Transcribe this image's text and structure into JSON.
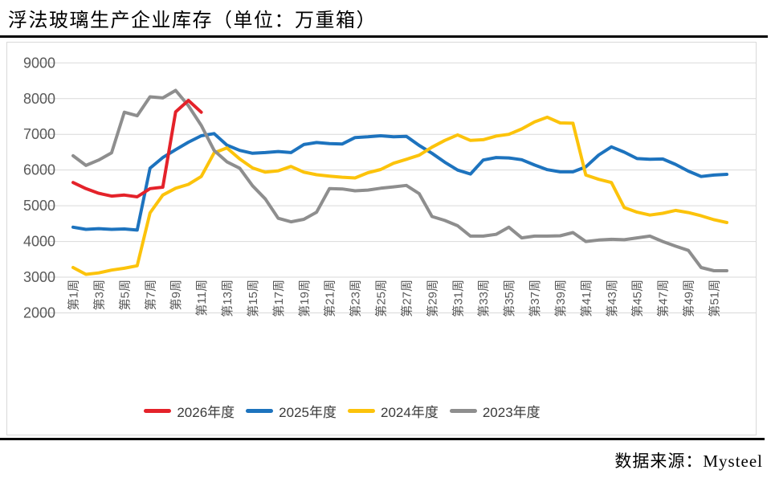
{
  "chart_data": {
    "type": "line",
    "title": "浮法玻璃生产企业库存（单位：万重箱）",
    "source_note": "数据来源：Mysteel",
    "legend_position": "bottom",
    "grid": true,
    "x_axis": {
      "weeks_total": 52,
      "tick_labels": [
        "第1周",
        "第3周",
        "第5周",
        "第7周",
        "第9周",
        "第11周",
        "第13周",
        "第15周",
        "第17周",
        "第19周",
        "第21周",
        "第23周",
        "第25周",
        "第27周",
        "第29周",
        "第31周",
        "第33周",
        "第35周",
        "第37周",
        "第39周",
        "第41周",
        "第43周",
        "第45周",
        "第47周",
        "第49周",
        "第51周"
      ]
    },
    "y_axis": {
      "min": 2000,
      "max": 9000,
      "ticks": [
        9000,
        8000,
        7000,
        6000,
        5000,
        4000,
        3000,
        2000
      ]
    },
    "colors": {
      "grid": "#d9d9d9",
      "axis_text": "#595959",
      "legend_text": "#3a3a3a",
      "rule": "#000000"
    },
    "series": [
      {
        "name": "2026年度",
        "color": "#e4222a",
        "start_week": 1,
        "values": [
          5650,
          5480,
          5350,
          5270,
          5300,
          5250,
          5480,
          5520,
          7630,
          7950,
          7620
        ]
      },
      {
        "name": "2025年度",
        "color": "#1d73be",
        "start_week": 1,
        "values": [
          4400,
          4340,
          4360,
          4340,
          4350,
          4320,
          6050,
          6350,
          6570,
          6780,
          6960,
          7020,
          6700,
          6550,
          6470,
          6490,
          6520,
          6490,
          6715,
          6770,
          6740,
          6730,
          6910,
          6930,
          6960,
          6930,
          6945,
          6690,
          6470,
          6220,
          6000,
          5890,
          6280,
          6350,
          6340,
          6290,
          6140,
          6010,
          5950,
          5950,
          6090,
          6420,
          6650,
          6500,
          6320,
          6300,
          6310,
          6160,
          5970,
          5820,
          5860,
          5880
        ]
      },
      {
        "name": "2024年度",
        "color": "#fcc30b",
        "start_week": 1,
        "values": [
          3270,
          3080,
          3120,
          3200,
          3250,
          3320,
          4800,
          5300,
          5490,
          5600,
          5820,
          6480,
          6620,
          6310,
          6060,
          5940,
          5980,
          6100,
          5940,
          5870,
          5830,
          5800,
          5780,
          5925,
          6015,
          6190,
          6300,
          6415,
          6640,
          6830,
          6985,
          6830,
          6850,
          6950,
          7000,
          7150,
          7350,
          7480,
          7320,
          7310,
          5860,
          5740,
          5650,
          4950,
          4820,
          4740,
          4790,
          4870,
          4810,
          4720,
          4610,
          4530
        ]
      },
      {
        "name": "2023年度",
        "color": "#8e8e8e",
        "start_week": 1,
        "values": [
          6400,
          6130,
          6280,
          6480,
          7620,
          7520,
          8050,
          8020,
          8230,
          7800,
          7250,
          6550,
          6230,
          6050,
          5560,
          5190,
          4650,
          4550,
          4620,
          4820,
          5480,
          5470,
          5420,
          5440,
          5490,
          5530,
          5570,
          5340,
          4700,
          4590,
          4440,
          4150,
          4150,
          4200,
          4400,
          4100,
          4150,
          4150,
          4160,
          4250,
          4000,
          4040,
          4060,
          4050,
          4100,
          4150,
          4000,
          3870,
          3750,
          3270,
          3180,
          3180
        ]
      }
    ],
    "draw_order": [
      1,
      2,
      3,
      0
    ]
  }
}
